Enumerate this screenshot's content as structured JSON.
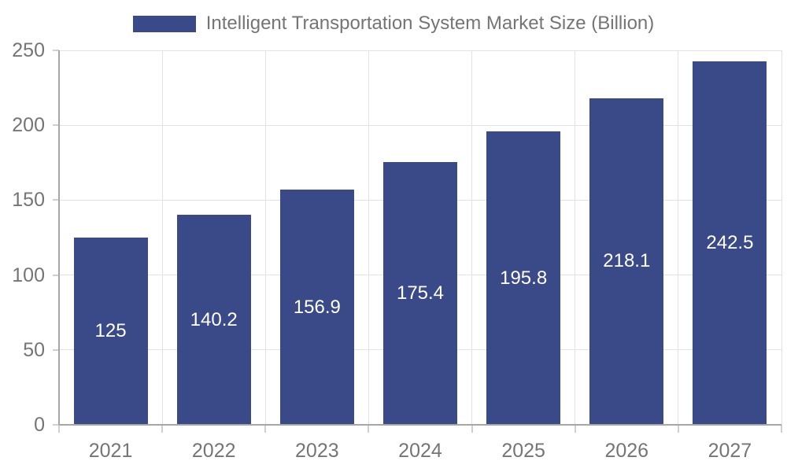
{
  "chart_data": {
    "type": "bar",
    "title": "Intelligent Transportation System Market Size (Billion)",
    "categories": [
      "2021",
      "2022",
      "2023",
      "2024",
      "2025",
      "2026",
      "2027"
    ],
    "values": [
      125,
      140.2,
      156.9,
      175.4,
      195.8,
      218.1,
      242.5
    ],
    "value_labels": [
      "125",
      "140.2",
      "156.9",
      "175.4",
      "195.8",
      "218.1",
      "242.5"
    ],
    "xlabel": "",
    "ylabel": "",
    "ylim": [
      0,
      250
    ],
    "yticks": [
      0,
      50,
      100,
      150,
      200,
      250
    ],
    "grid": true,
    "legend_position": "top",
    "colors": {
      "bar": "#3A4A88",
      "bar_value_text": "#FFFFFF",
      "axis_text": "#757575",
      "legend_text": "#757575",
      "gridline": "#E2E2E2",
      "axis_line": "#A6A6A6",
      "tick_mark": "#CFCFCF",
      "background": "#FFFFFF"
    }
  }
}
